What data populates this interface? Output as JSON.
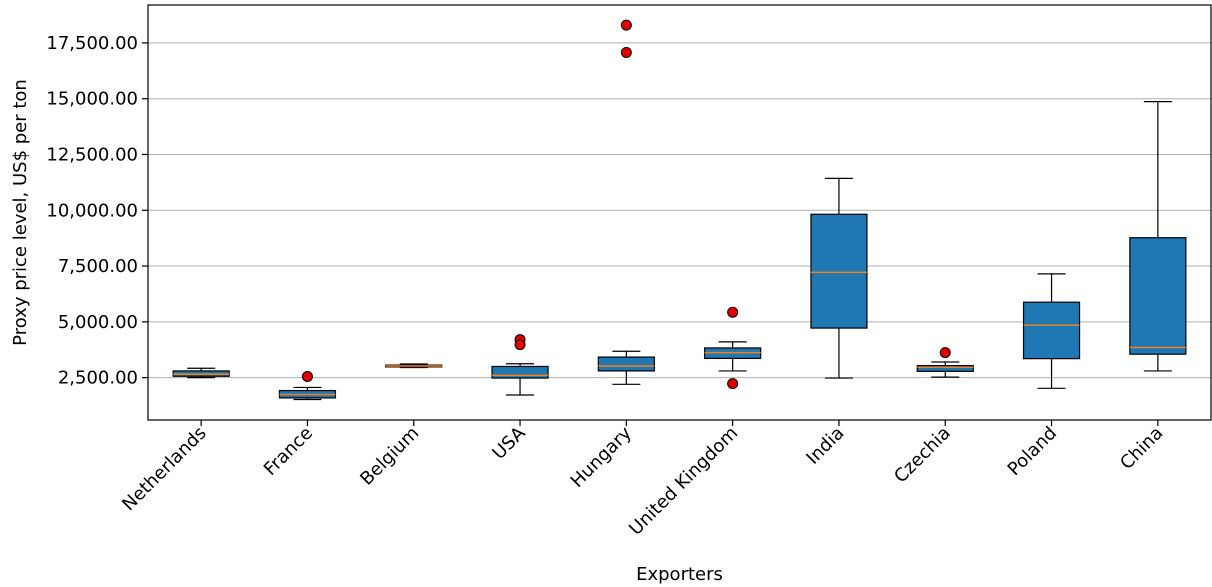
{
  "chart_data": {
    "type": "box",
    "xlabel": "Exporters",
    "ylabel": "Proxy price level, US$ per ton",
    "ylim": [
      600,
      19200
    ],
    "yticks": [
      2500,
      5000,
      7500,
      10000,
      12500,
      15000,
      17500
    ],
    "ytick_labels": [
      "2,500.00",
      "5,000.00",
      "7,500.00",
      "10,000.00",
      "12,500.00",
      "15,000.00",
      "17,500.00"
    ],
    "grid": "horizontal",
    "colors": {
      "box_fill": "#1f77b4",
      "median": "#ff7f0e",
      "outlier": "#e00000",
      "grid": "#b0b0b0"
    },
    "categories": [
      "Netherlands",
      "France",
      "Belgium",
      "USA",
      "Hungary",
      "United Kingdom",
      "India",
      "Czechia",
      "Poland",
      "China"
    ],
    "boxes": [
      {
        "category": "Netherlands",
        "whisker_low": 2500,
        "q1": 2560,
        "median": 2650,
        "q3": 2800,
        "whisker_high": 2920,
        "outliers": []
      },
      {
        "category": "France",
        "whisker_low": 1520,
        "q1": 1590,
        "median": 1740,
        "q3": 1920,
        "whisker_high": 2060,
        "outliers": [
          2550
        ]
      },
      {
        "category": "Belgium",
        "whisker_low": 2950,
        "q1": 2980,
        "median": 3020,
        "q3": 3060,
        "whisker_high": 3110,
        "outliers": []
      },
      {
        "category": "USA",
        "whisker_low": 1720,
        "q1": 2480,
        "median": 2600,
        "q3": 3000,
        "whisker_high": 3120,
        "outliers": [
          4200,
          3980
        ]
      },
      {
        "category": "Hungary",
        "whisker_low": 2200,
        "q1": 2800,
        "median": 3020,
        "q3": 3420,
        "whisker_high": 3680,
        "outliers": [
          18300,
          17070
        ]
      },
      {
        "category": "United Kingdom",
        "whisker_low": 2800,
        "q1": 3360,
        "median": 3620,
        "q3": 3830,
        "whisker_high": 4100,
        "outliers": [
          5430,
          2230
        ]
      },
      {
        "category": "India",
        "whisker_low": 2480,
        "q1": 4720,
        "median": 7220,
        "q3": 9820,
        "whisker_high": 11430,
        "outliers": []
      },
      {
        "category": "Czechia",
        "whisker_low": 2520,
        "q1": 2780,
        "median": 2960,
        "q3": 3040,
        "whisker_high": 3200,
        "outliers": [
          3620
        ]
      },
      {
        "category": "Poland",
        "whisker_low": 2020,
        "q1": 3350,
        "median": 4850,
        "q3": 5880,
        "whisker_high": 7150,
        "outliers": []
      },
      {
        "category": "China",
        "whisker_low": 2800,
        "q1": 3550,
        "median": 3850,
        "q3": 8770,
        "whisker_high": 14870,
        "outliers": []
      }
    ]
  }
}
